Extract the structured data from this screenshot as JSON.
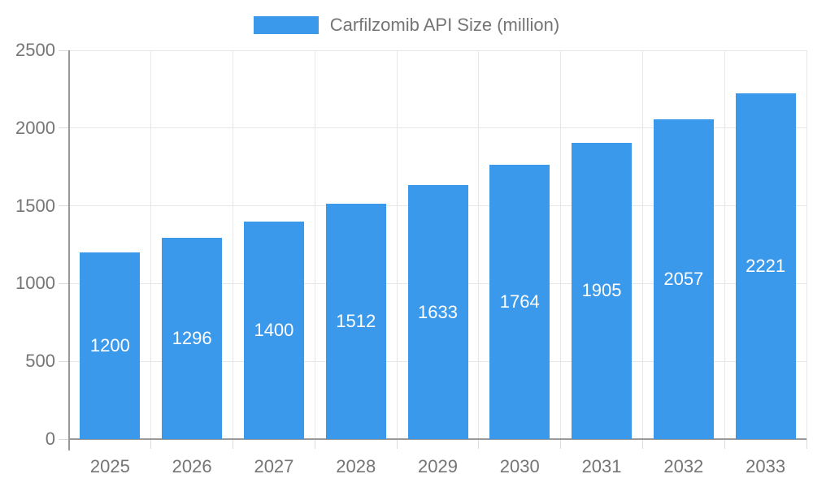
{
  "chart_data": {
    "type": "bar",
    "title": "Carfilzomib API Size (million)",
    "categories": [
      "2025",
      "2026",
      "2027",
      "2028",
      "2029",
      "2030",
      "2031",
      "2032",
      "2033"
    ],
    "series": [
      {
        "name": "Carfilzomib API Size (million)",
        "values": [
          1200,
          1296,
          1400,
          1512,
          1633,
          1764,
          1905,
          2057,
          2221
        ]
      }
    ],
    "value_labels_shown": true,
    "xlabel": "",
    "ylabel": "",
    "ylim": [
      0,
      2500
    ],
    "yticks": [
      0,
      500,
      1000,
      1500,
      2000,
      2500
    ],
    "grid": true,
    "legend_position": "top-center"
  },
  "colors": {
    "bar": "#3B99EC",
    "axis_text": "#757575",
    "gridline": "#e6e6e6",
    "tick": "#d9d9d9",
    "axis_line": "#999999",
    "bar_value_text": "#ffffff",
    "background": "#ffffff"
  }
}
